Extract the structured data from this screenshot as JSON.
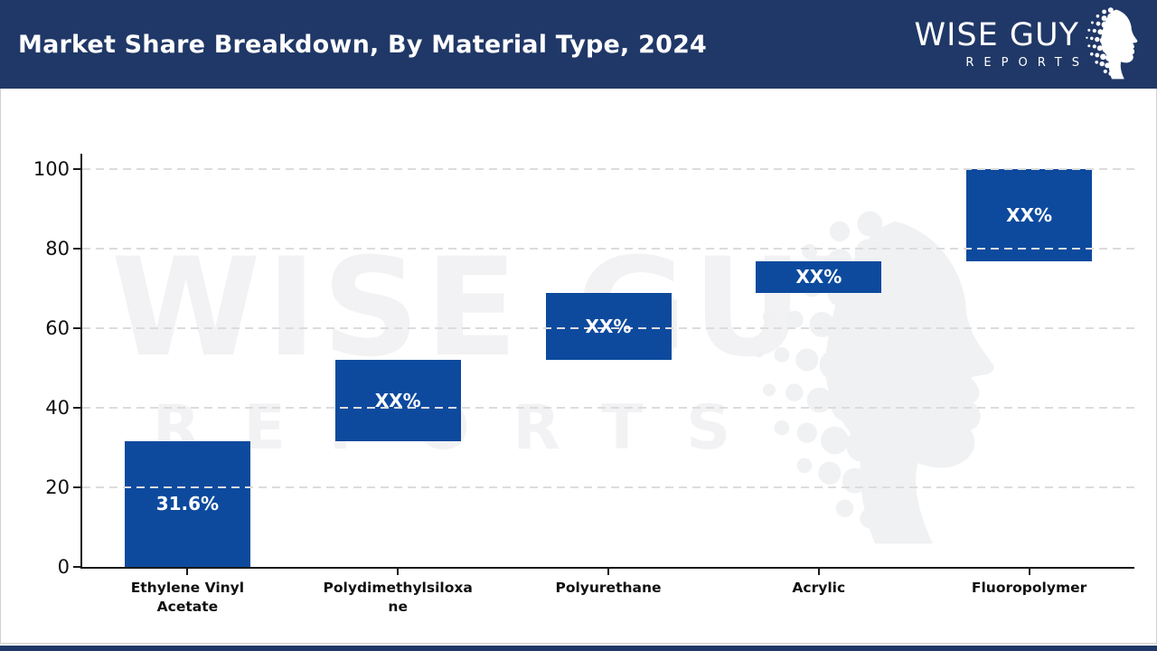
{
  "header": {
    "title": "Market Share Breakdown, By Material Type, 2024",
    "brand": {
      "line1": "WISE GUY",
      "line2": "REPORTS"
    }
  },
  "watermark": {
    "line1": "WISE GUY",
    "line2": "REPORTS"
  },
  "colors": {
    "header_bg": "#203867",
    "bar": "#0d4a9e",
    "grid": "#dcdcdc",
    "axis": "#1a1a1a",
    "bar_label_text": "#ffffff",
    "tick_text": "#111111",
    "watermark": "#f2f2f4"
  },
  "chart_data": {
    "type": "bar",
    "subtype": "waterfall-floating-bars",
    "title": "Market Share Breakdown, By Material Type, 2024",
    "categories": [
      "Ethylene Vinyl Acetate",
      "Polydimethylsiloxane",
      "Polyurethane",
      "Acrylic",
      "Fluoropolymer"
    ],
    "category_display": [
      "Ethylene Vinyl\nAcetate",
      "Polydimethylsiloxa\nne",
      "Polyurethane",
      "Acrylic",
      "Fluoropolymer"
    ],
    "segments": [
      {
        "category": "Ethylene Vinyl Acetate",
        "start": 0,
        "end": 31.6,
        "label": "31.6%"
      },
      {
        "category": "Polydimethylsiloxane",
        "start": 31.6,
        "end": 52.0,
        "label": "XX%"
      },
      {
        "category": "Polyurethane",
        "start": 52.0,
        "end": 68.9,
        "label": "XX%"
      },
      {
        "category": "Acrylic",
        "start": 68.9,
        "end": 76.9,
        "label": "XX%"
      },
      {
        "category": "Fluoropolymer",
        "start": 76.9,
        "end": 100,
        "label": "XX%"
      }
    ],
    "xlabel": "",
    "ylabel": "",
    "ylim": [
      0,
      100
    ],
    "yticks": [
      0,
      20,
      40,
      60,
      80,
      100
    ],
    "grid": true,
    "grid_style": "dashed",
    "legend": false
  }
}
